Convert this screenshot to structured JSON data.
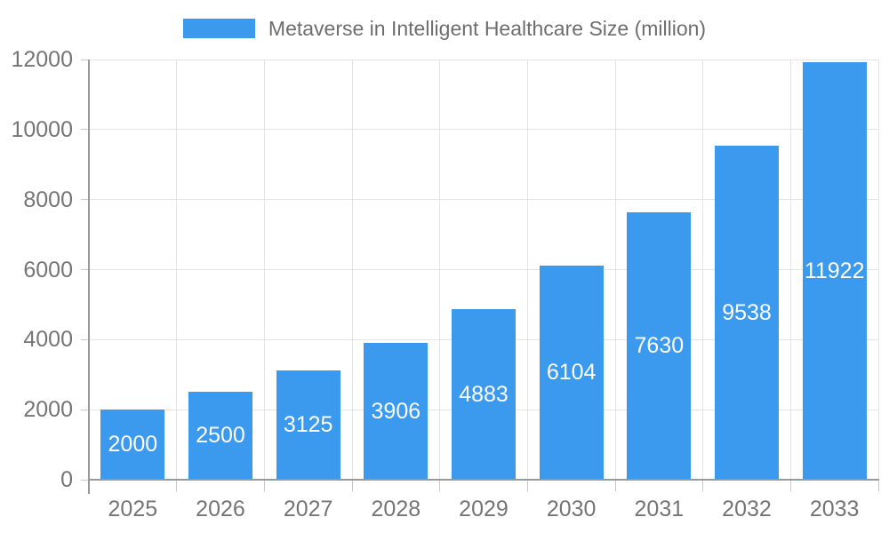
{
  "chart_data": {
    "type": "bar",
    "title": "Metaverse in Intelligent Healthcare Size (million)",
    "categories": [
      "2025",
      "2026",
      "2027",
      "2028",
      "2029",
      "2030",
      "2031",
      "2032",
      "2033"
    ],
    "values": [
      2000,
      2500,
      3125,
      3906,
      4883,
      6104,
      7630,
      9538,
      11922
    ],
    "bar_value_labels": [
      "2000",
      "2500",
      "3125",
      "3906",
      "4883",
      "6104",
      "7630",
      "9538",
      "11922"
    ],
    "xlabel": "",
    "ylabel": "",
    "ylim": [
      0,
      12000
    ],
    "y_ticks": [
      0,
      2000,
      4000,
      6000,
      8000,
      10000,
      12000
    ],
    "y_tick_labels": [
      "0",
      "2000",
      "4000",
      "6000",
      "8000",
      "10000",
      "12000"
    ],
    "grid": "horizontal-and-vertical",
    "legend_position": "top-center",
    "legend_items": [
      {
        "label": "Metaverse in Intelligent Healthcare Size (million)",
        "color": "#3B99EE"
      }
    ],
    "colors": {
      "bar": "#3B99EE",
      "bar_label_text": "#FFFFFF",
      "axis_text": "#757575",
      "title_text": "#6E6E6E",
      "grid_line": "#E4E4E4",
      "axis_line": "#999999",
      "tick_line": "#C9C9C9",
      "background": "#FFFFFF"
    }
  }
}
